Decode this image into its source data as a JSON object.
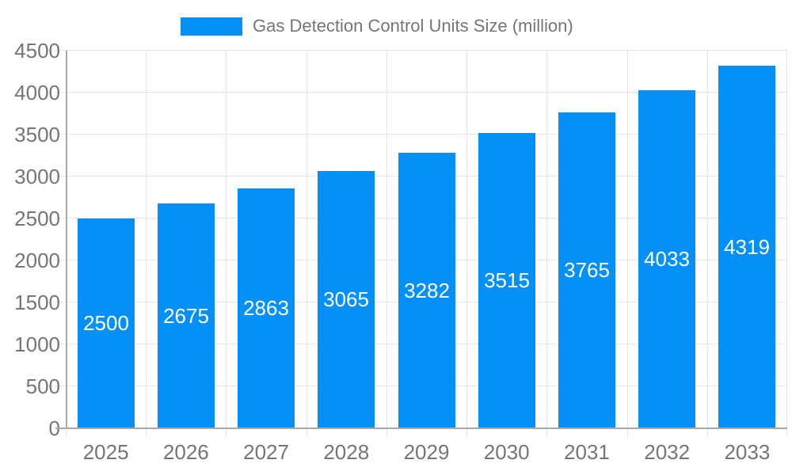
{
  "legend": {
    "label": "Gas Detection Control Units Size (million)"
  },
  "colors": {
    "bar": "#0590f8",
    "axis_text": "#757575",
    "gridline": "#e5e5e5",
    "axis_line": "#a9a9a9",
    "bar_label_text": "#ffffff",
    "background": "#ffffff"
  },
  "chart_data": {
    "type": "bar",
    "title": "Gas Detection Control Units Size (million)",
    "categories": [
      "2025",
      "2026",
      "2027",
      "2028",
      "2029",
      "2030",
      "2031",
      "2032",
      "2033"
    ],
    "values": [
      2500,
      2675,
      2863,
      3065,
      3282,
      3515,
      3765,
      4033,
      4319
    ],
    "xlabel": "",
    "ylabel": "",
    "ylim": [
      0,
      4500
    ],
    "ytick_step": 500,
    "yticks": [
      0,
      500,
      1000,
      1500,
      2000,
      2500,
      3000,
      3500,
      4000,
      4500
    ],
    "grid": true,
    "legend_position": "top",
    "bar_value_labels": "centered-inside-white"
  }
}
